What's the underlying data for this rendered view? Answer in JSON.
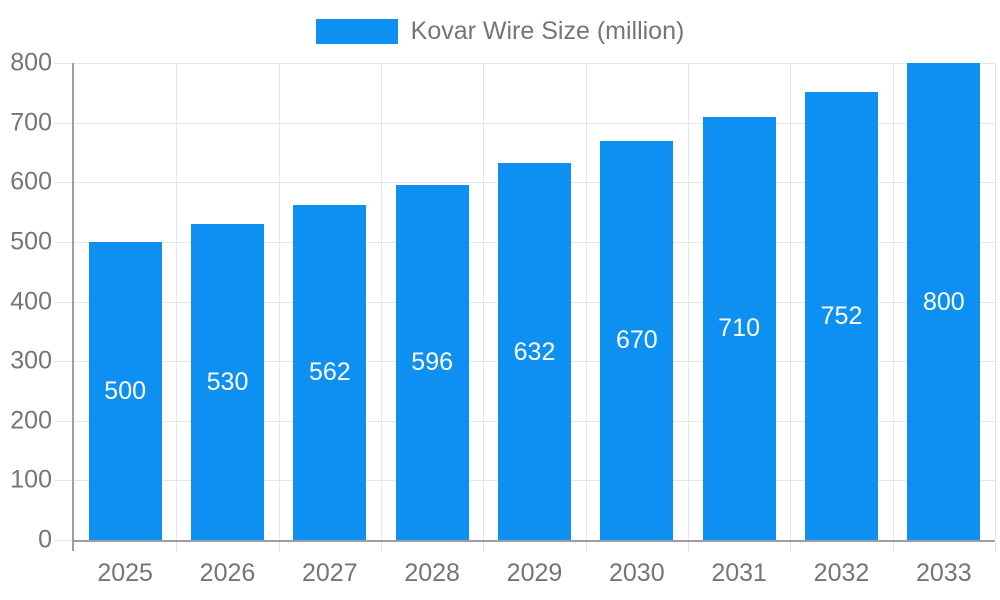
{
  "chart_data": {
    "type": "bar",
    "title": "",
    "legend": {
      "label": "Kovar Wire Size (million)",
      "position": "top"
    },
    "categories": [
      "2025",
      "2026",
      "2027",
      "2028",
      "2029",
      "2030",
      "2031",
      "2032",
      "2033"
    ],
    "series": [
      {
        "name": "Kovar Wire Size (million)",
        "values": [
          500,
          530,
          562,
          596,
          632,
          670,
          710,
          752,
          800
        ]
      }
    ],
    "xlabel": "",
    "ylabel": "",
    "ylim": [
      0,
      800
    ],
    "yticks": [
      0,
      100,
      200,
      300,
      400,
      500,
      600,
      700,
      800
    ],
    "grid": true,
    "value_labels_shown": true,
    "colors": {
      "bar": "#0e90f2",
      "bar_value_label": "#ffffff",
      "axis_text": "#757575",
      "grid_line": "#e6e6e6",
      "axis_line": "#9e9e9e",
      "background": "#ffffff"
    }
  }
}
